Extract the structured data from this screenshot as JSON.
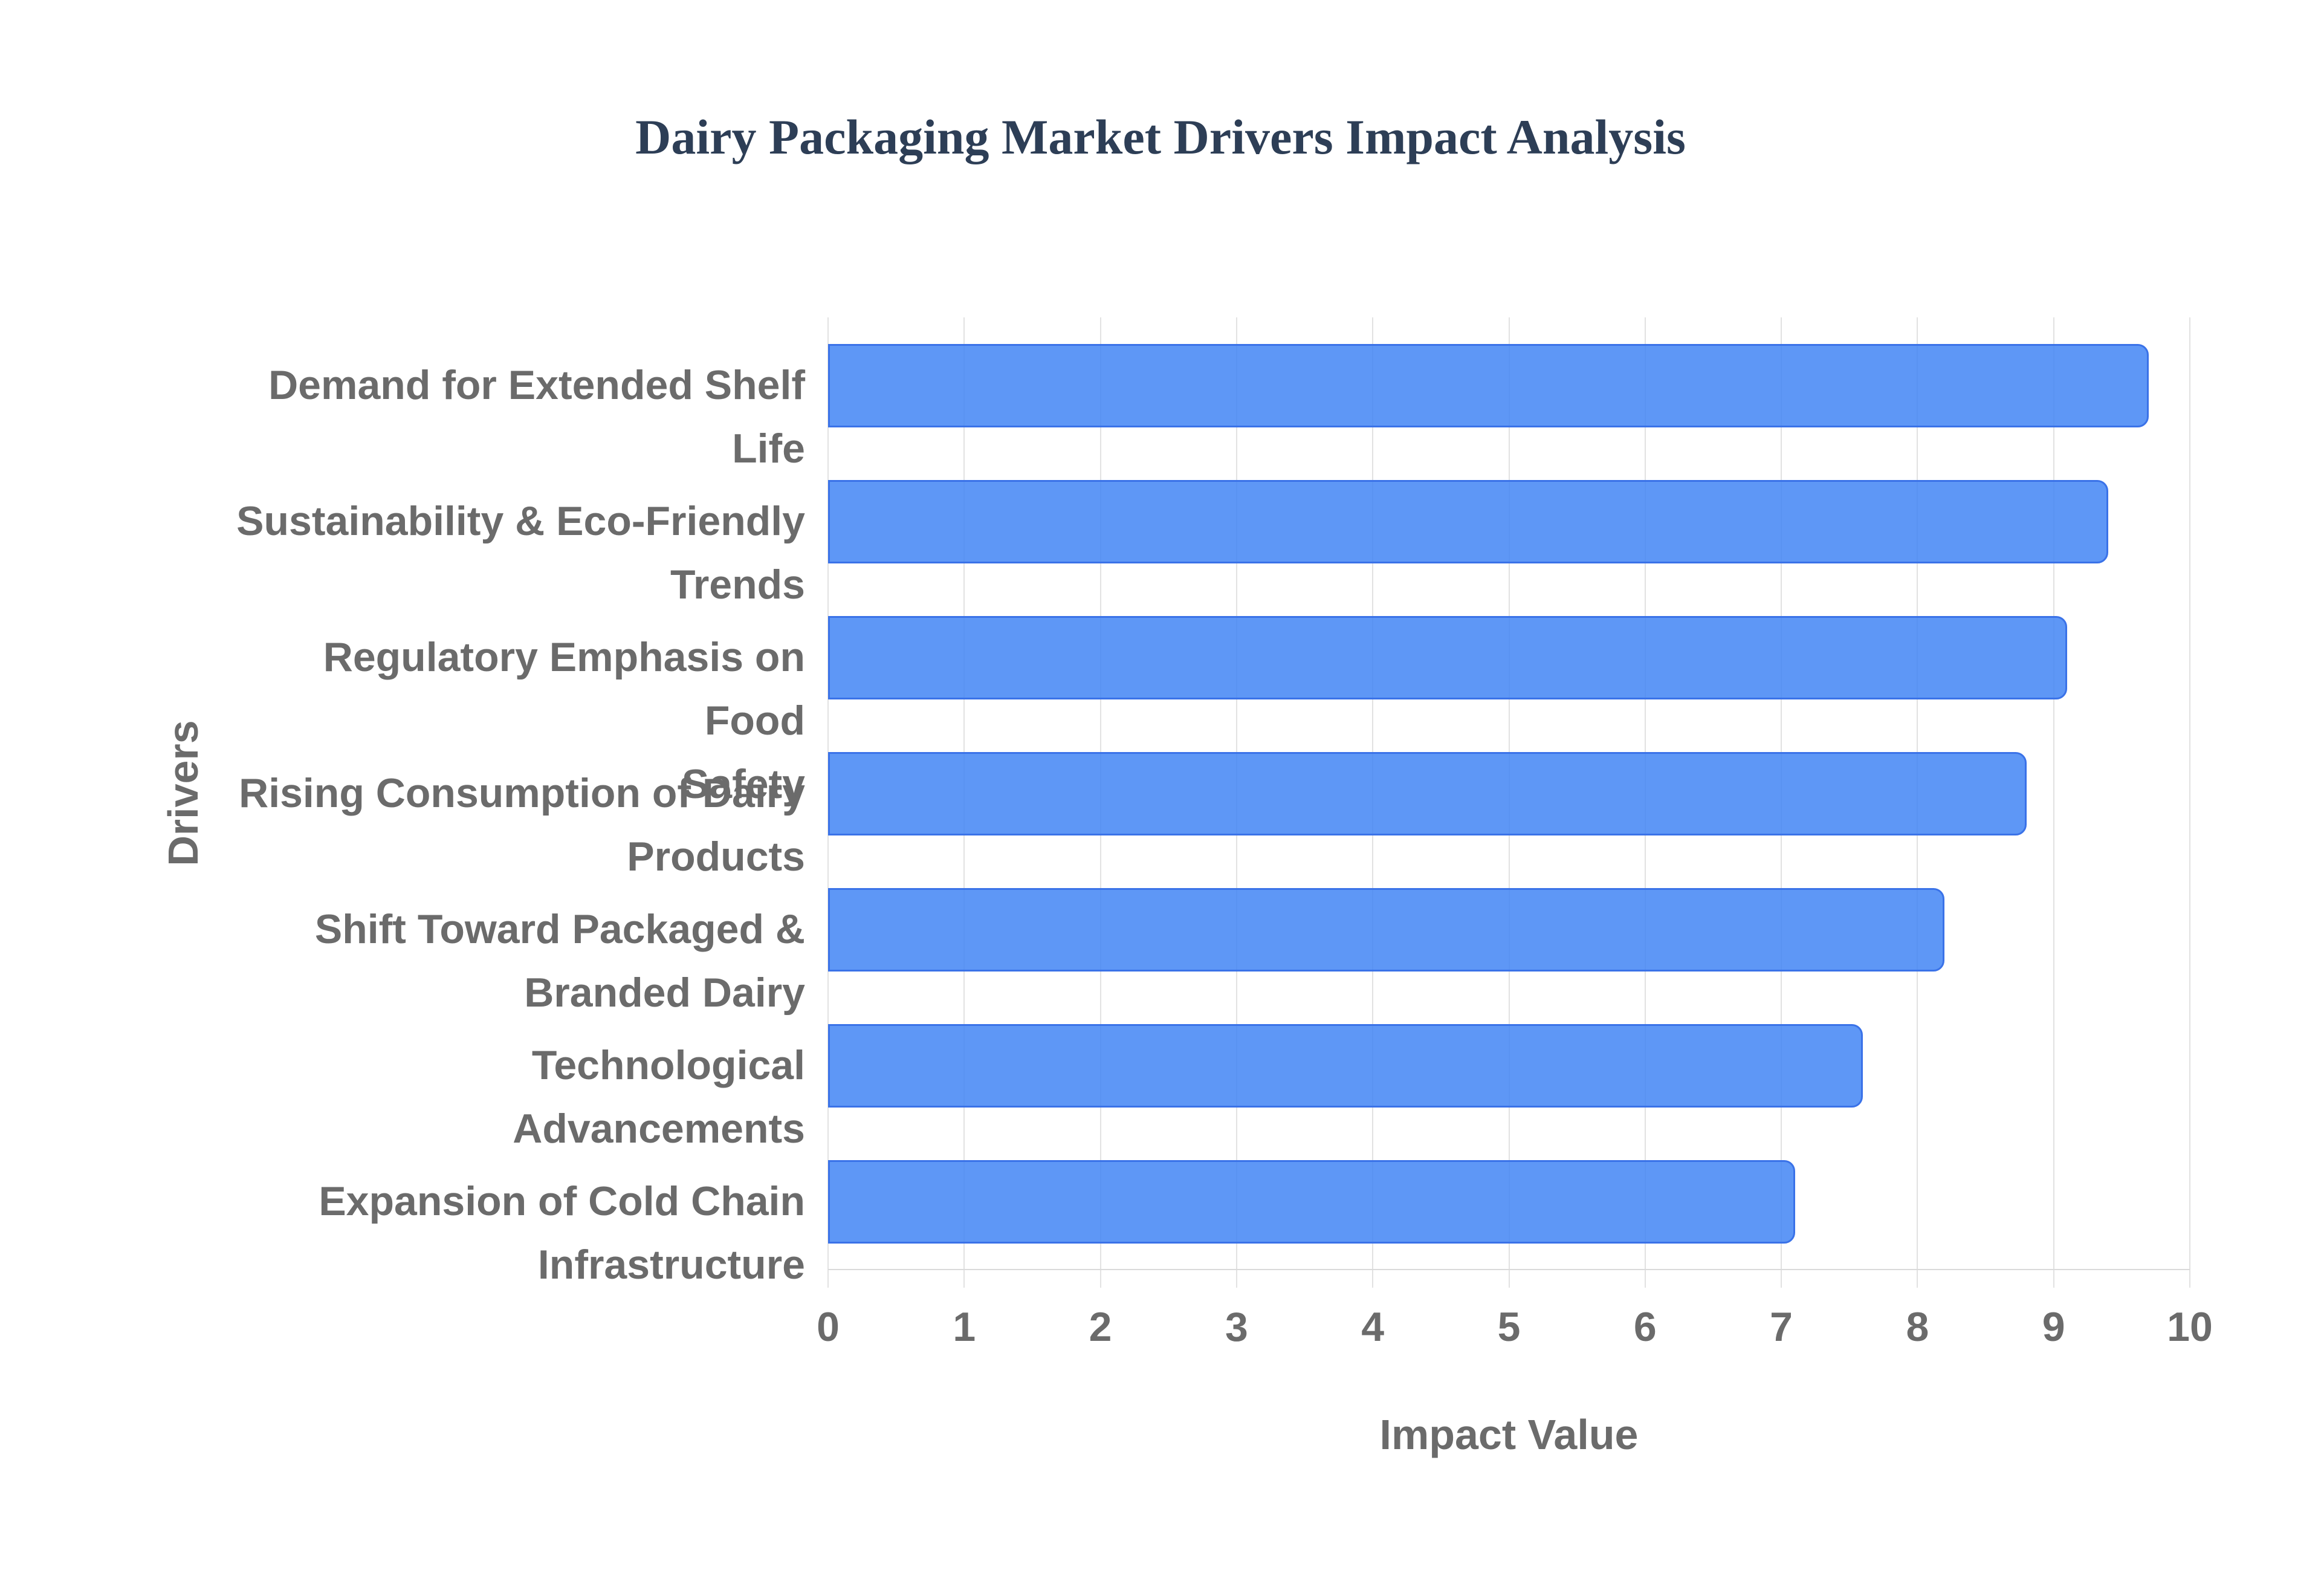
{
  "chart_data": {
    "type": "bar",
    "orientation": "horizontal",
    "title": "Dairy Packaging Market Drivers Impact Analysis",
    "xlabel": "Impact Value",
    "ylabel": "Drivers",
    "categories": [
      "Demand for Extended Shelf Life",
      "Sustainability & Eco-Friendly\nTrends",
      "Regulatory Emphasis on Food\nSafety",
      "Rising Consumption of Dairy\nProducts",
      "Shift Toward Packaged &\nBranded Dairy",
      "Technological Advancements",
      "Expansion of Cold Chain\nInfrastructure"
    ],
    "values": [
      9.7,
      9.4,
      9.1,
      8.8,
      8.2,
      7.6,
      7.1
    ],
    "xlim": [
      0,
      10
    ],
    "xticks": [
      "0",
      "1",
      "2",
      "3",
      "4",
      "5",
      "6",
      "7",
      "8",
      "9",
      "10"
    ],
    "grid": true,
    "legend": "none",
    "colors": {
      "bar_fill": "rgba(66,133,244,0.85)",
      "bar_border": "#3a72e8",
      "title": "#2d3e56",
      "axis_text": "#6b6b6b",
      "gridline": "#e2e2e2",
      "axis_line": "#dadada",
      "background": "#ffffff"
    }
  }
}
